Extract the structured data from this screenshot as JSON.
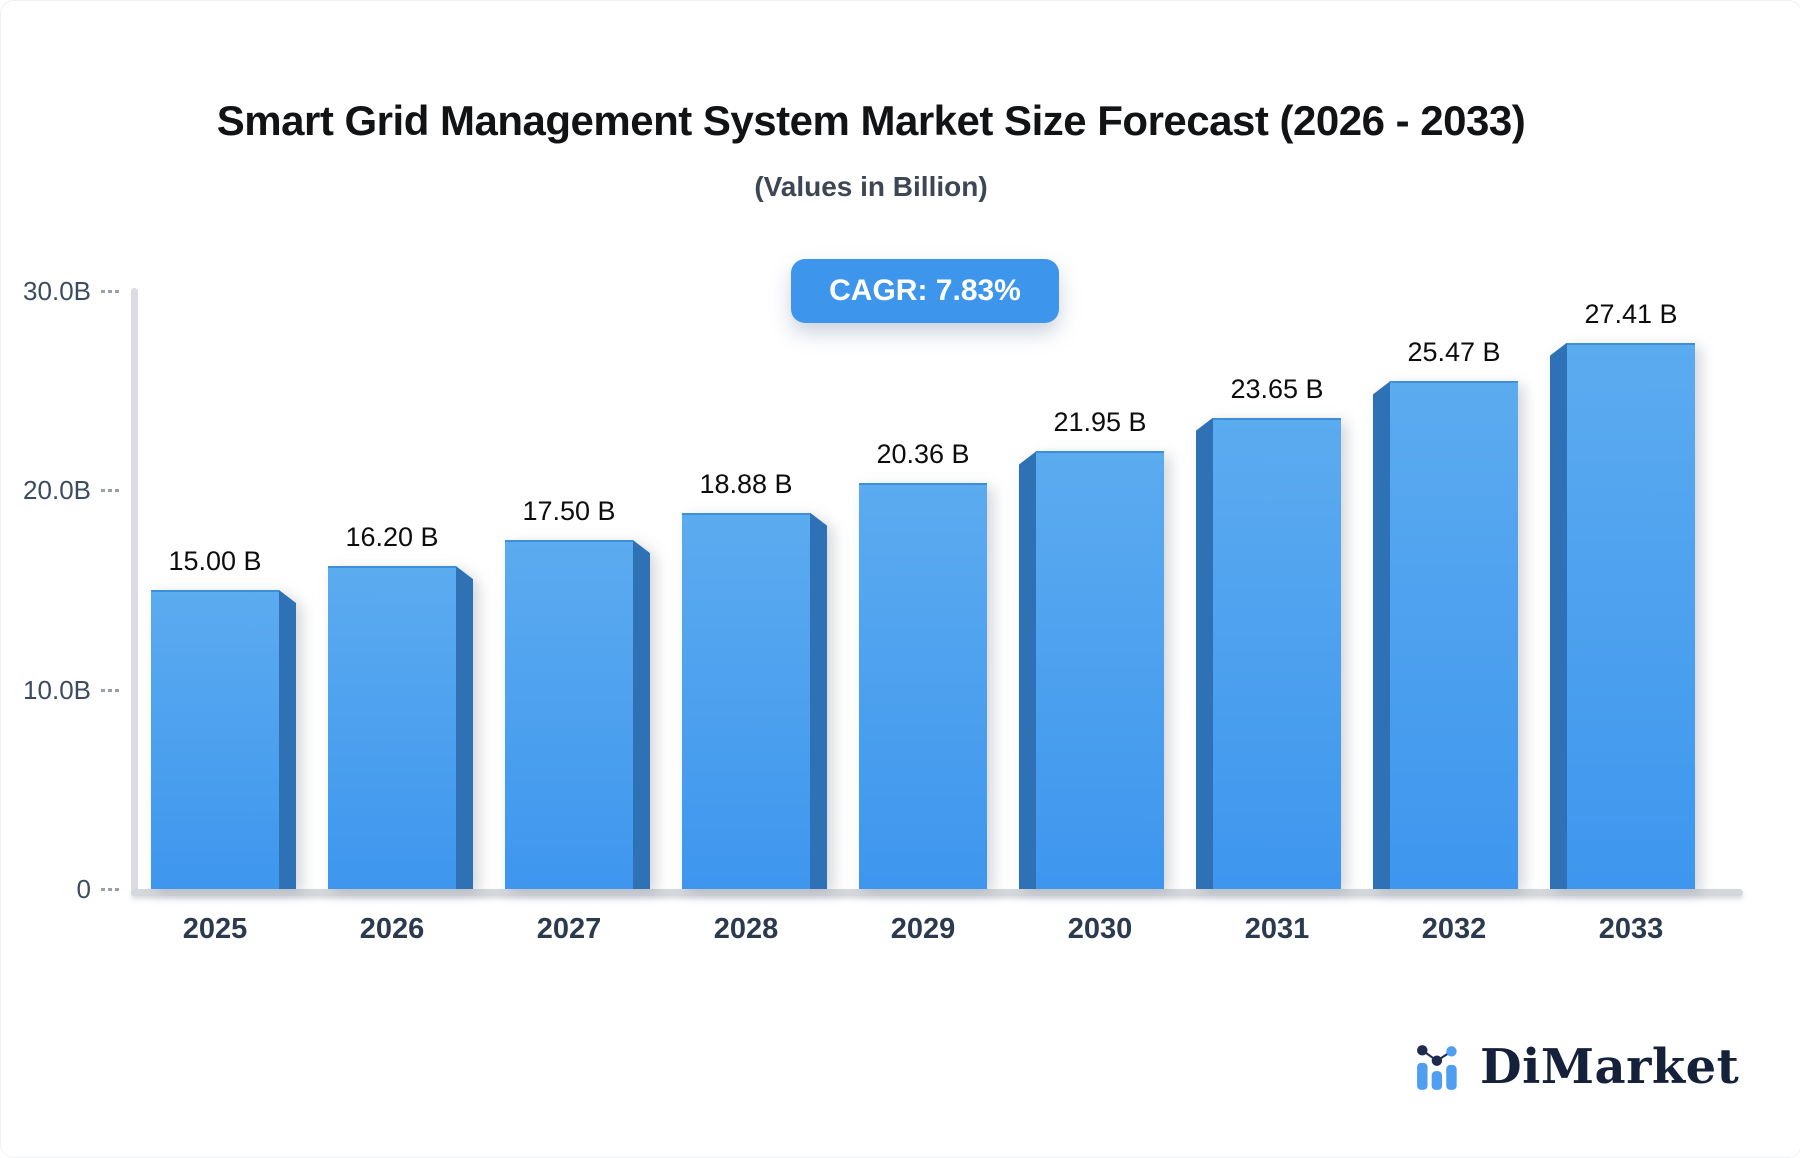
{
  "header": {
    "title": "Smart Grid Management System Market Size Forecast (2026 - 2033)",
    "subtitle": "(Values in Billion)"
  },
  "cagr_badge": {
    "label": "CAGR: 7.83%",
    "bg_color": "#3e96ec",
    "text_color": "#ffffff"
  },
  "chart_data": {
    "type": "bar",
    "title": "Smart Grid Management System Market Size Forecast (2026 - 2033)",
    "subtitle": "(Values in Billion)",
    "cagr": "7.83%",
    "categories": [
      "2025",
      "2026",
      "2027",
      "2028",
      "2029",
      "2030",
      "2031",
      "2032",
      "2033"
    ],
    "values": [
      15.0,
      16.2,
      17.5,
      18.88,
      20.36,
      21.95,
      23.65,
      25.47,
      27.41
    ],
    "value_labels": [
      "15.00 B",
      "16.20 B",
      "17.50 B",
      "18.88 B",
      "20.36 B",
      "21.95 B",
      "23.65 B",
      "25.47 B",
      "27.41 B"
    ],
    "unit": "Billion",
    "xlabel": "",
    "ylabel": "",
    "ylim": [
      0,
      30
    ],
    "y_ticks": [
      {
        "value": 0,
        "label": "0"
      },
      {
        "value": 10,
        "label": "10.0B"
      },
      {
        "value": 20,
        "label": "20.0B"
      },
      {
        "value": 30,
        "label": "30.0B"
      }
    ],
    "grid": false,
    "legend": false,
    "bar_style": {
      "effect": "3d-center-perspective",
      "front_top_color": "#5babef",
      "front_bottom_color": "#3e96ee",
      "side_color": "#2e71b4",
      "top_edge_color": "#3f8ed8"
    }
  },
  "axis_style": {
    "y_label_color": "#3c4c60",
    "x_label_color": "#2c3a50",
    "axis_line_color": "#d7dade",
    "value_label_color": "#0d0d0d"
  },
  "logo": {
    "text": "DiMarket",
    "icon": "mini-bar-chart-icon",
    "icon_bar_color": "#4f9ef2",
    "icon_dot_dark_color": "#1d2b4f",
    "icon_dot_light_color": "#4f9ef2",
    "text_color": "#15203a"
  }
}
